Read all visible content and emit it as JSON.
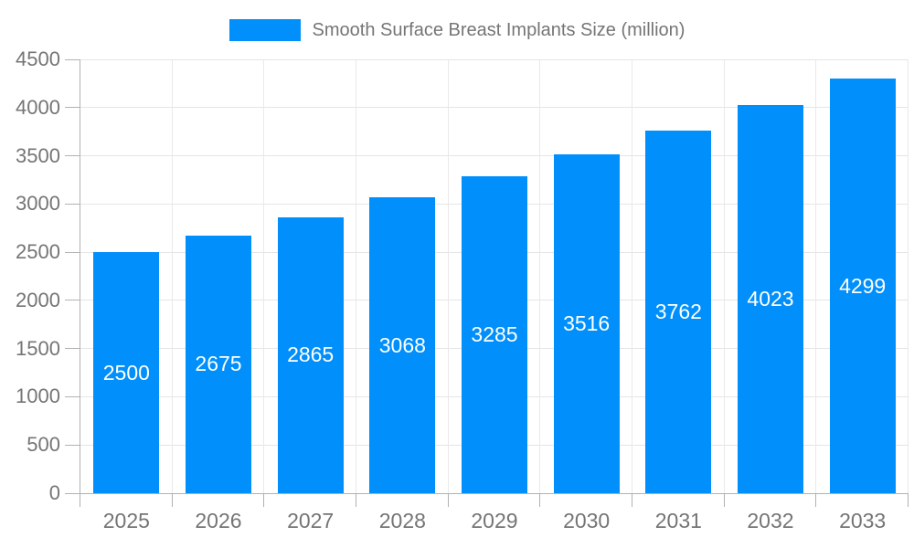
{
  "chart_data": {
    "type": "bar",
    "title": "Smooth Surface Breast Implants Size (million)",
    "legend": [
      "Smooth Surface Breast Implants Size (million)"
    ],
    "legend_position": "top",
    "categories": [
      "2025",
      "2026",
      "2027",
      "2028",
      "2029",
      "2030",
      "2031",
      "2032",
      "2033"
    ],
    "values": [
      2500,
      2675,
      2865,
      3068,
      3285,
      3516,
      3762,
      4023,
      4299
    ],
    "xlabel": "",
    "ylabel": "",
    "ylim": [
      0,
      4500
    ],
    "yticks": [
      0,
      500,
      1000,
      1500,
      2000,
      2500,
      3000,
      3500,
      4000,
      4500
    ],
    "grid": true,
    "colors": {
      "bar": "#008FFB",
      "value_label": "#FFFFFF",
      "axis_text": "#757575",
      "grid_line": "#e5e5e5",
      "axis_line": "#b2b2b2"
    }
  }
}
